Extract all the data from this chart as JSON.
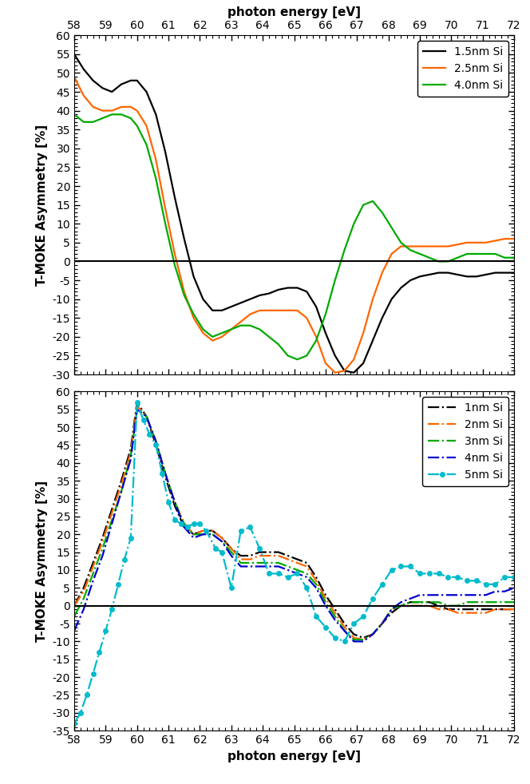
{
  "top_panel": {
    "title_top": "photon energy [eV]",
    "ylabel": "T-MOKE Asymmetry [%]",
    "xlim": [
      58,
      72
    ],
    "ylim": [
      -30,
      60
    ],
    "yticks": [
      -30,
      -25,
      -20,
      -15,
      -10,
      -5,
      0,
      5,
      10,
      15,
      20,
      25,
      30,
      35,
      40,
      45,
      50,
      55,
      60
    ],
    "series": [
      {
        "label": "1.5nm Si",
        "color": "#000000",
        "lw": 1.6,
        "x": [
          58.0,
          58.3,
          58.6,
          58.9,
          59.2,
          59.5,
          59.8,
          60.0,
          60.3,
          60.6,
          60.9,
          61.2,
          61.5,
          61.8,
          62.1,
          62.4,
          62.7,
          63.0,
          63.3,
          63.6,
          63.9,
          64.2,
          64.5,
          64.8,
          65.1,
          65.4,
          65.7,
          66.0,
          66.3,
          66.6,
          66.9,
          67.2,
          67.5,
          67.8,
          68.1,
          68.4,
          68.7,
          69.0,
          69.3,
          69.6,
          69.9,
          70.2,
          70.5,
          70.8,
          71.1,
          71.4,
          71.7,
          72.0
        ],
        "y": [
          55,
          51,
          48,
          46,
          45,
          47,
          48,
          48,
          45,
          39,
          29,
          17,
          6,
          -4,
          -10,
          -13,
          -13,
          -12,
          -11,
          -10,
          -9,
          -8.5,
          -7.5,
          -7,
          -7,
          -8,
          -12,
          -19,
          -25,
          -29,
          -29.5,
          -27,
          -21,
          -15,
          -10,
          -7,
          -5,
          -4,
          -3.5,
          -3,
          -3,
          -3.5,
          -4,
          -4,
          -3.5,
          -3,
          -3,
          -3
        ]
      },
      {
        "label": "2.5nm Si",
        "color": "#FF6600",
        "lw": 1.6,
        "x": [
          58.0,
          58.3,
          58.6,
          58.9,
          59.2,
          59.5,
          59.8,
          60.0,
          60.3,
          60.6,
          60.9,
          61.2,
          61.5,
          61.8,
          62.1,
          62.4,
          62.7,
          63.0,
          63.3,
          63.6,
          63.9,
          64.2,
          64.5,
          64.8,
          65.1,
          65.4,
          65.7,
          66.0,
          66.3,
          66.6,
          66.9,
          67.2,
          67.5,
          67.8,
          68.1,
          68.4,
          68.7,
          69.0,
          69.3,
          69.6,
          69.9,
          70.2,
          70.5,
          70.8,
          71.1,
          71.4,
          71.7,
          72.0
        ],
        "y": [
          49,
          44,
          41,
          40,
          40,
          41,
          41,
          40,
          36,
          27,
          14,
          2,
          -8,
          -15,
          -19,
          -21,
          -20,
          -18,
          -16,
          -14,
          -13,
          -13,
          -13,
          -13,
          -13,
          -15,
          -20,
          -27,
          -29.5,
          -29,
          -26,
          -19,
          -10,
          -3,
          2,
          4,
          4,
          4,
          4,
          4,
          4,
          4.5,
          5,
          5,
          5,
          5.5,
          6,
          6
        ]
      },
      {
        "label": "4.0nm Si",
        "color": "#00AA00",
        "lw": 1.6,
        "x": [
          58.0,
          58.3,
          58.6,
          58.9,
          59.2,
          59.5,
          59.8,
          60.0,
          60.3,
          60.6,
          60.9,
          61.2,
          61.5,
          61.8,
          62.1,
          62.4,
          62.7,
          63.0,
          63.3,
          63.6,
          63.9,
          64.2,
          64.5,
          64.8,
          65.1,
          65.4,
          65.7,
          66.0,
          66.3,
          66.6,
          66.9,
          67.2,
          67.5,
          67.8,
          68.1,
          68.4,
          68.7,
          69.0,
          69.3,
          69.6,
          69.9,
          70.2,
          70.5,
          70.8,
          71.1,
          71.4,
          71.7,
          72.0
        ],
        "y": [
          39,
          37,
          37,
          38,
          39,
          39,
          38,
          36,
          31,
          22,
          10,
          -1,
          -9,
          -14,
          -18,
          -20,
          -19,
          -18,
          -17,
          -17,
          -18,
          -20,
          -22,
          -25,
          -26,
          -25,
          -21,
          -14,
          -5,
          3,
          10,
          15,
          16,
          13,
          9,
          5,
          3,
          2,
          1,
          0,
          0,
          1,
          2,
          2,
          2,
          2,
          1,
          1
        ]
      }
    ]
  },
  "bottom_panel": {
    "xlabel": "photon energy [eV]",
    "ylabel": "T-MOKE Asymmetry [%]",
    "xlim": [
      58,
      72
    ],
    "ylim": [
      -35,
      60
    ],
    "yticks": [
      -35,
      -30,
      -25,
      -20,
      -15,
      -10,
      -5,
      0,
      5,
      10,
      15,
      20,
      25,
      30,
      35,
      40,
      45,
      50,
      55,
      60
    ],
    "series": [
      {
        "label": "1nm Si",
        "color": "#000000",
        "lw": 1.6,
        "linestyle": "-.",
        "has_marker": false,
        "x": [
          58.0,
          58.3,
          58.6,
          58.9,
          59.2,
          59.5,
          59.8,
          60.0,
          60.3,
          60.6,
          60.9,
          61.2,
          61.5,
          61.8,
          62.1,
          62.4,
          62.7,
          63.0,
          63.3,
          63.6,
          63.9,
          64.2,
          64.5,
          64.8,
          65.1,
          65.4,
          65.7,
          66.0,
          66.3,
          66.6,
          66.9,
          67.2,
          67.5,
          67.8,
          68.1,
          68.4,
          68.7,
          69.0,
          69.3,
          69.6,
          69.9,
          70.2,
          70.5,
          70.8,
          71.1,
          71.4,
          71.7,
          72.0
        ],
        "y": [
          0,
          5,
          12,
          19,
          27,
          35,
          44,
          57,
          53,
          45,
          36,
          28,
          22,
          20,
          21,
          21,
          19,
          16,
          14,
          14,
          15,
          15,
          15,
          14,
          13,
          12,
          8,
          3,
          -1,
          -5,
          -8,
          -9,
          -8,
          -5,
          -2,
          0,
          1,
          1,
          1,
          0,
          -1,
          -1,
          -1,
          -1,
          -1,
          -1,
          -1,
          -1
        ]
      },
      {
        "label": "2nm Si",
        "color": "#FF6600",
        "lw": 1.6,
        "linestyle": "-.",
        "has_marker": false,
        "x": [
          58.0,
          58.3,
          58.6,
          58.9,
          59.2,
          59.5,
          59.8,
          60.0,
          60.3,
          60.6,
          60.9,
          61.2,
          61.5,
          61.8,
          62.1,
          62.4,
          62.7,
          63.0,
          63.3,
          63.6,
          63.9,
          64.2,
          64.5,
          64.8,
          65.1,
          65.4,
          65.7,
          66.0,
          66.3,
          66.6,
          66.9,
          67.2,
          67.5,
          67.8,
          68.1,
          68.4,
          68.7,
          69.0,
          69.3,
          69.6,
          69.9,
          70.2,
          70.5,
          70.8,
          71.1,
          71.4,
          71.7,
          72.0
        ],
        "y": [
          0,
          4,
          11,
          18,
          26,
          34,
          43,
          56,
          53,
          46,
          37,
          29,
          23,
          20,
          21,
          21,
          19,
          16,
          13,
          13,
          14,
          14,
          14,
          13,
          12,
          11,
          7,
          2,
          -2,
          -6,
          -9,
          -9.5,
          -8,
          -5,
          -1,
          0,
          0,
          0,
          0,
          -1,
          -1,
          -2,
          -2,
          -2,
          -2,
          -1,
          -1,
          -1
        ]
      },
      {
        "label": "3nm Si",
        "color": "#00AA00",
        "lw": 1.6,
        "linestyle": "-.",
        "has_marker": false,
        "x": [
          58.0,
          58.3,
          58.6,
          58.9,
          59.2,
          59.5,
          59.8,
          60.0,
          60.3,
          60.6,
          60.9,
          61.2,
          61.5,
          61.8,
          62.1,
          62.4,
          62.7,
          63.0,
          63.3,
          63.6,
          63.9,
          64.2,
          64.5,
          64.8,
          65.1,
          65.4,
          65.7,
          66.0,
          66.3,
          66.6,
          66.9,
          67.2,
          67.5,
          67.8,
          68.1,
          68.4,
          68.7,
          69.0,
          69.3,
          69.6,
          69.9,
          70.2,
          70.5,
          70.8,
          71.1,
          71.4,
          71.7,
          72.0
        ],
        "y": [
          -3,
          2,
          9,
          16,
          24,
          32,
          42,
          55,
          53,
          46,
          37,
          29,
          23,
          20,
          20,
          20,
          18,
          15,
          12,
          12,
          12,
          12,
          12,
          11,
          10,
          9,
          6,
          1,
          -3,
          -7,
          -9.5,
          -9.5,
          -8,
          -5,
          -1,
          0,
          1,
          1,
          1,
          1,
          0,
          0,
          1,
          1,
          1,
          1,
          1,
          1
        ]
      },
      {
        "label": "4nm Si",
        "color": "#0000CC",
        "lw": 1.6,
        "linestyle": "-.",
        "has_marker": false,
        "x": [
          58.0,
          58.3,
          58.6,
          58.9,
          59.2,
          59.5,
          59.8,
          60.0,
          60.3,
          60.6,
          60.9,
          61.2,
          61.5,
          61.8,
          62.1,
          62.4,
          62.7,
          63.0,
          63.3,
          63.6,
          63.9,
          64.2,
          64.5,
          64.8,
          65.1,
          65.4,
          65.7,
          66.0,
          66.3,
          66.6,
          66.9,
          67.2,
          67.5,
          67.8,
          68.1,
          68.4,
          68.7,
          69.0,
          69.3,
          69.6,
          69.9,
          70.2,
          70.5,
          70.8,
          71.1,
          71.4,
          71.7,
          72.0
        ],
        "y": [
          -7,
          -1,
          7,
          14,
          23,
          32,
          41,
          55,
          53,
          46,
          37,
          29,
          22,
          19,
          20,
          20,
          18,
          14,
          11,
          11,
          11,
          11,
          11,
          10,
          9,
          8,
          5,
          0,
          -4,
          -7,
          -10,
          -10,
          -8,
          -5,
          -1,
          1,
          2,
          3,
          3,
          3,
          3,
          3,
          3,
          3,
          3,
          4,
          4,
          5
        ]
      },
      {
        "label": "5nm Si",
        "color": "#00BBCC",
        "lw": 1.6,
        "linestyle": "-.",
        "has_marker": true,
        "markersize": 4.5,
        "x": [
          58.0,
          58.2,
          58.4,
          58.6,
          58.8,
          59.0,
          59.2,
          59.4,
          59.6,
          59.8,
          60.0,
          60.2,
          60.4,
          60.6,
          60.8,
          61.0,
          61.2,
          61.4,
          61.6,
          61.8,
          62.0,
          62.2,
          62.5,
          62.7,
          63.0,
          63.3,
          63.6,
          63.9,
          64.2,
          64.5,
          64.8,
          65.1,
          65.4,
          65.7,
          66.0,
          66.3,
          66.6,
          66.9,
          67.2,
          67.5,
          67.8,
          68.1,
          68.4,
          68.7,
          69.0,
          69.3,
          69.6,
          69.9,
          70.2,
          70.5,
          70.8,
          71.1,
          71.4,
          71.7,
          72.0
        ],
        "y": [
          -33,
          -30,
          -25,
          -19,
          -13,
          -7,
          -1,
          6,
          13,
          19,
          57,
          52,
          48,
          45,
          37,
          29,
          24,
          23,
          22,
          23,
          23,
          21,
          16,
          15,
          5,
          21,
          22,
          16,
          9,
          9,
          8,
          9,
          5,
          -3,
          -6,
          -9,
          -10,
          -5,
          -3,
          2,
          6,
          10,
          11,
          11,
          9,
          9,
          9,
          8,
          8,
          7,
          7,
          6,
          6,
          8,
          8
        ]
      }
    ]
  }
}
